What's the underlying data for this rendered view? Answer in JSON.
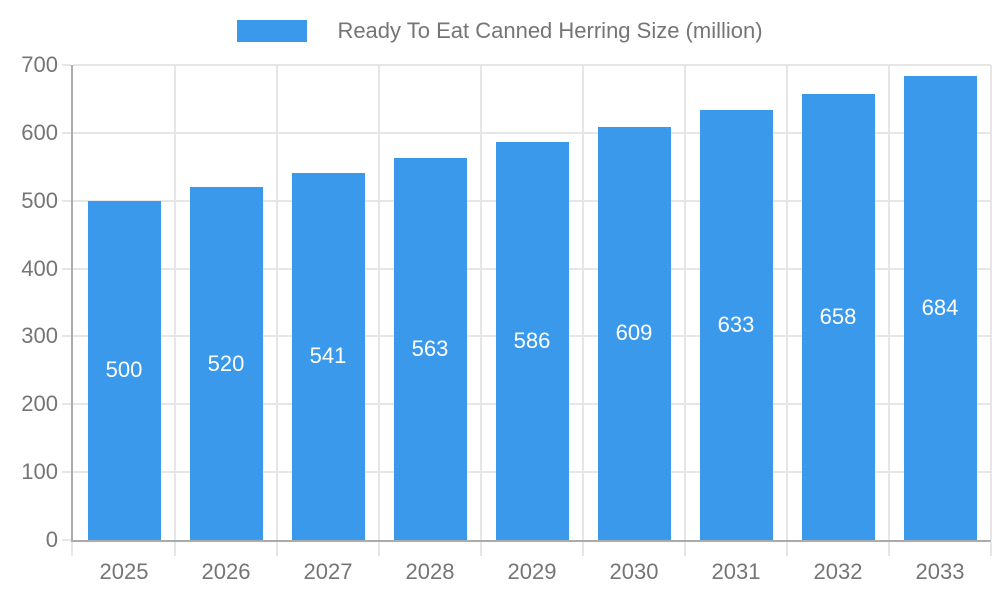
{
  "chart_data": {
    "type": "bar",
    "title": "Ready To Eat Canned Herring Size (million)",
    "categories": [
      "2025",
      "2026",
      "2027",
      "2028",
      "2029",
      "2030",
      "2031",
      "2032",
      "2033"
    ],
    "values": [
      500,
      520,
      541,
      563,
      586,
      609,
      633,
      658,
      684
    ],
    "xlabel": "",
    "ylabel": "",
    "ylim": [
      0,
      700
    ],
    "y_ticks": [
      0,
      100,
      200,
      300,
      400,
      500,
      600,
      700
    ],
    "grid": true,
    "legend_position": "top-center",
    "value_label_position": "inside-middle",
    "colors": {
      "bar": "#3b99ec",
      "grid": "#e6e6e6",
      "axis": "#ababab",
      "tick_text": "#757575",
      "value_text": "#ffffff",
      "background": "#ffffff"
    }
  }
}
